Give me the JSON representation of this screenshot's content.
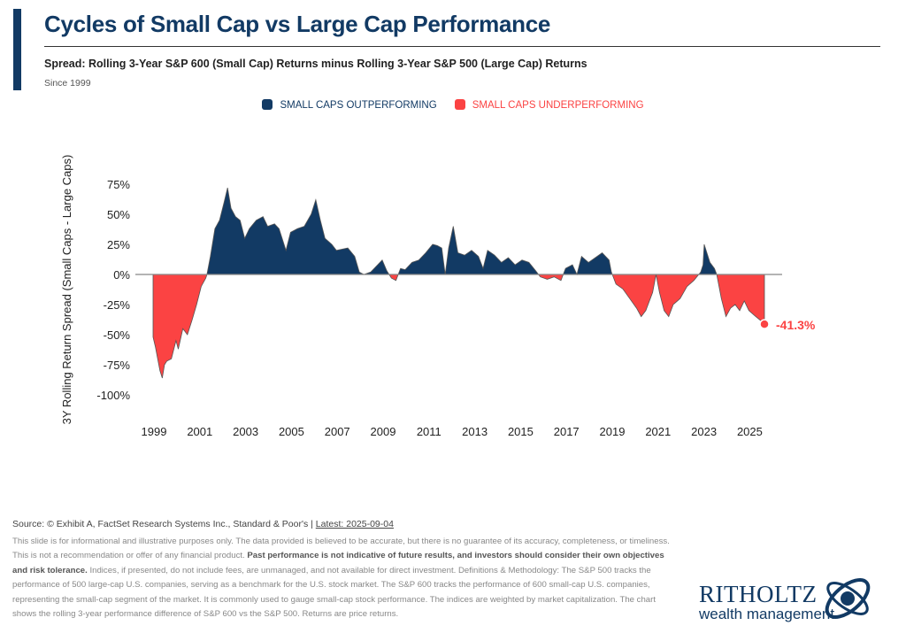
{
  "header": {
    "title": "Cycles of Small Cap vs Large Cap Performance",
    "subtitle": "Spread: Rolling 3-Year S&P 600 (Small Cap) Returns minus Rolling 3-Year S&P 500 (Large Cap) Returns",
    "since": "Since 1999"
  },
  "footer": {
    "source": "Source: © Exhibit A, FactSet Research Systems Inc., Standard & Poor's | ",
    "latest": "Latest: 2025-09-04",
    "disclaimer_1": "This slide is for informational and illustrative purposes only. The data provided is believed to be accurate, but there is no guarantee of its accuracy, completeness, or timeliness. This is not a recommendation or offer of any financial product. ",
    "disclaimer_bold": "Past performance is not indicative of future results, and investors should consider their own objectives and risk tolerance.",
    "disclaimer_2": " Indices, if presented, do not include fees, are unmanaged, and not available for direct investment. Definitions & Methodology: The S&P 500 tracks the performance of 500 large-cap U.S. companies, serving as a benchmark for the U.S. stock market. The S&P 600 tracks the performance of 600 small-cap U.S. companies, representing the small-cap segment of the market. It is commonly used to gauge small-cap stock performance. The indices are weighted by market capitalization. The chart shows the rolling 3-year performance difference of S&P 600 vs the S&P 500. Returns are price returns."
  },
  "logo": {
    "name": "RITHOLTZ",
    "tagline": "wealth management"
  },
  "colors": {
    "positive": "#123a64",
    "negative": "#fb4343"
  },
  "chart_data": {
    "type": "area",
    "title": "",
    "xlabel": "",
    "ylabel": "3Y Rolling Return Spread (Small Caps - Large Caps)",
    "ylim": [
      -100,
      75
    ],
    "yticks": [
      "75%",
      "50%",
      "25%",
      "0%",
      "-25%",
      "-50%",
      "-75%",
      "-100%"
    ],
    "ytick_values": [
      75,
      50,
      25,
      0,
      -25,
      -50,
      -75,
      -100
    ],
    "xticks": [
      "1999",
      "2001",
      "2003",
      "2005",
      "2007",
      "2009",
      "2011",
      "2013",
      "2015",
      "2017",
      "2019",
      "2021",
      "2023",
      "2025"
    ],
    "legend": [
      {
        "name": "SMALL CAPS OUTPERFORMING",
        "color": "#123a64"
      },
      {
        "name": "SMALL CAPS UNDERPERFORMING",
        "color": "#fb4343"
      }
    ],
    "legend_position": "top",
    "annotation": "-41.3%",
    "series": [
      {
        "x": [
          1999.0,
          1999.1,
          1999.2,
          1999.3,
          1999.4,
          1999.5,
          1999.6,
          1999.8,
          2000.0,
          2000.1,
          2000.3,
          2000.5,
          2000.7,
          2000.9,
          2001.1,
          2001.3,
          2001.35,
          2001.5,
          2001.7,
          2001.9,
          2002.1,
          2002.25,
          2002.4,
          2002.6,
          2002.8,
          2003.0,
          2003.2,
          2003.5,
          2003.8,
          2004.0,
          2004.3,
          2004.5,
          2004.8,
          2005.0,
          2005.3,
          2005.6,
          2005.9,
          2006.1,
          2006.3,
          2006.5,
          2006.8,
          2007.0,
          2007.5,
          2007.8,
          2008.0,
          2008.2,
          2008.5,
          2008.8,
          2009.0,
          2009.2,
          2009.4,
          2009.6,
          2009.8,
          2010.0,
          2010.3,
          2010.6,
          2010.9,
          2011.2,
          2011.4,
          2011.6,
          2011.75,
          2011.9,
          2012.1,
          2012.3,
          2012.6,
          2012.9,
          2013.2,
          2013.4,
          2013.6,
          2013.9,
          2014.2,
          2014.5,
          2014.8,
          2015.1,
          2015.4,
          2015.7,
          2015.9,
          2016.2,
          2016.5,
          2016.8,
          2017.0,
          2017.3,
          2017.5,
          2017.7,
          2018.0,
          2018.3,
          2018.6,
          2018.9,
          2019.0,
          2019.2,
          2019.5,
          2019.8,
          2020.1,
          2020.3,
          2020.5,
          2020.8,
          2020.95,
          2021.1,
          2021.3,
          2021.5,
          2021.7,
          2022.0,
          2022.3,
          2022.6,
          2022.9,
          2023.0,
          2023.05,
          2023.3,
          2023.5,
          2023.6,
          2023.8,
          2024.0,
          2024.2,
          2024.4,
          2024.6,
          2024.8,
          2025.0,
          2025.3,
          2025.5,
          2025.68
        ],
        "y": [
          -52,
          -60,
          -70,
          -80,
          -86,
          -75,
          -72,
          -70,
          -55,
          -62,
          -45,
          -50,
          -38,
          -25,
          -10,
          -3,
          0,
          15,
          38,
          45,
          60,
          72,
          55,
          48,
          45,
          30,
          38,
          45,
          48,
          40,
          42,
          38,
          20,
          35,
          38,
          40,
          50,
          62,
          45,
          30,
          25,
          20,
          22,
          15,
          2,
          0,
          2,
          8,
          12,
          3,
          -3,
          -5,
          5,
          4,
          10,
          12,
          18,
          25,
          24,
          22,
          0,
          22,
          40,
          18,
          16,
          20,
          15,
          5,
          20,
          16,
          10,
          14,
          8,
          12,
          10,
          3,
          -2,
          -4,
          -2,
          -5,
          5,
          8,
          0,
          15,
          10,
          14,
          18,
          12,
          2,
          -8,
          -12,
          -20,
          -28,
          -35,
          -30,
          -15,
          0,
          -15,
          -30,
          -35,
          -25,
          -20,
          -10,
          -5,
          2,
          8,
          25,
          10,
          5,
          0,
          -20,
          -35,
          -28,
          -25,
          -30,
          -22,
          -30,
          -35,
          -38,
          -41.3
        ]
      }
    ]
  }
}
